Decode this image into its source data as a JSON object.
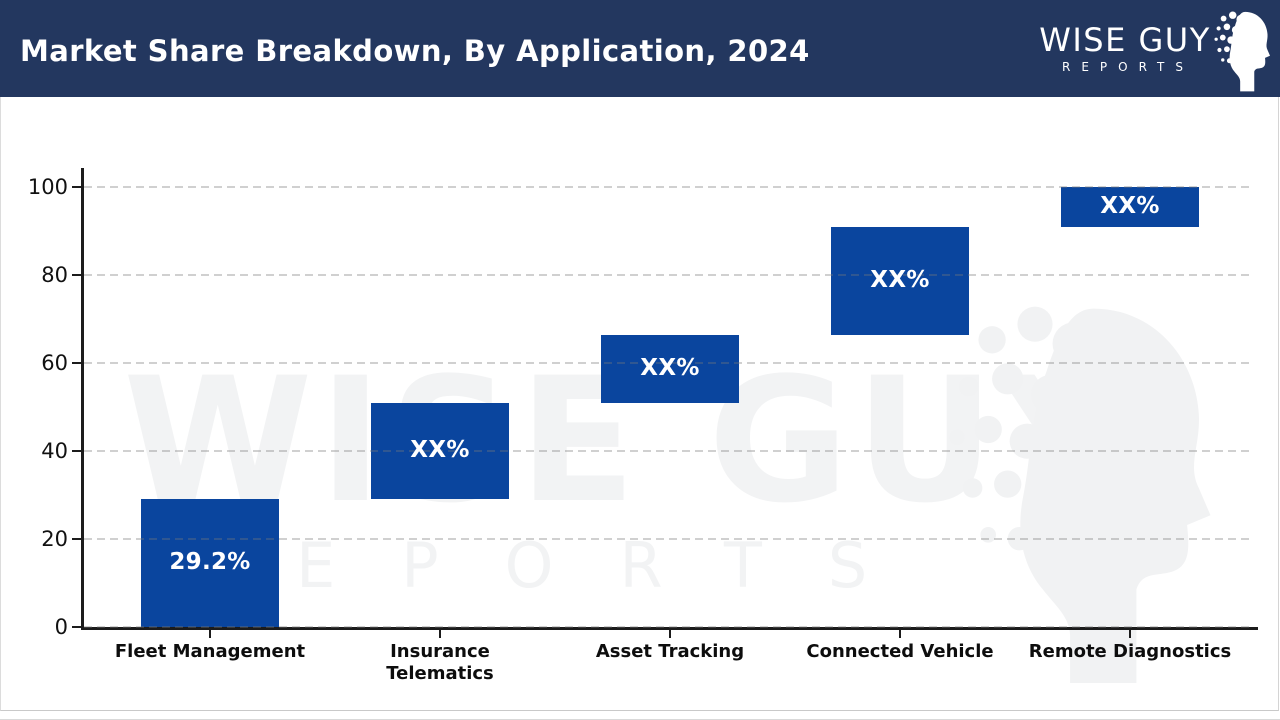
{
  "header": {
    "title": "Market Share Breakdown, By Application, 2024",
    "bg_color": "#23375f"
  },
  "logo": {
    "primary": "WISE GUY",
    "secondary": "REPORTS"
  },
  "watermark": {
    "line1": "WISE GUY",
    "line2": "REPORTS"
  },
  "chart_data": {
    "type": "bar",
    "variant": "floating-waterfall",
    "title": "Market Share Breakdown, By Application, 2024",
    "categories": [
      "Fleet Management",
      "Insurance Telematics",
      "Asset Tracking",
      "Connected Vehicle",
      "Remote Diagnostics"
    ],
    "category_display": [
      "Fleet Management",
      "Insurance\nTelematics",
      "Asset Tracking",
      "Connected Vehicle",
      "Remote Diagnostics"
    ],
    "segments": [
      {
        "category": "Fleet Management",
        "start": 0,
        "end": 29.2,
        "label": "29.2%"
      },
      {
        "category": "Insurance Telematics",
        "start": 29.2,
        "end": 51.0,
        "label": "XX%"
      },
      {
        "category": "Asset Tracking",
        "start": 51.0,
        "end": 66.5,
        "label": "XX%"
      },
      {
        "category": "Connected Vehicle",
        "start": 66.5,
        "end": 91.0,
        "label": "XX%"
      },
      {
        "category": "Remote Diagnostics",
        "start": 91.0,
        "end": 100.0,
        "label": "XX%"
      }
    ],
    "yticks": [
      0,
      20,
      40,
      60,
      80,
      100
    ],
    "ylim": [
      0,
      105
    ],
    "xlabel": "",
    "ylabel": "",
    "grid": {
      "axis": "y",
      "style": "dashed"
    },
    "legend": "none",
    "bar_color": "#0a459e",
    "bar_label_color": "#ffffff",
    "axis_color": "#1c1c1c"
  }
}
